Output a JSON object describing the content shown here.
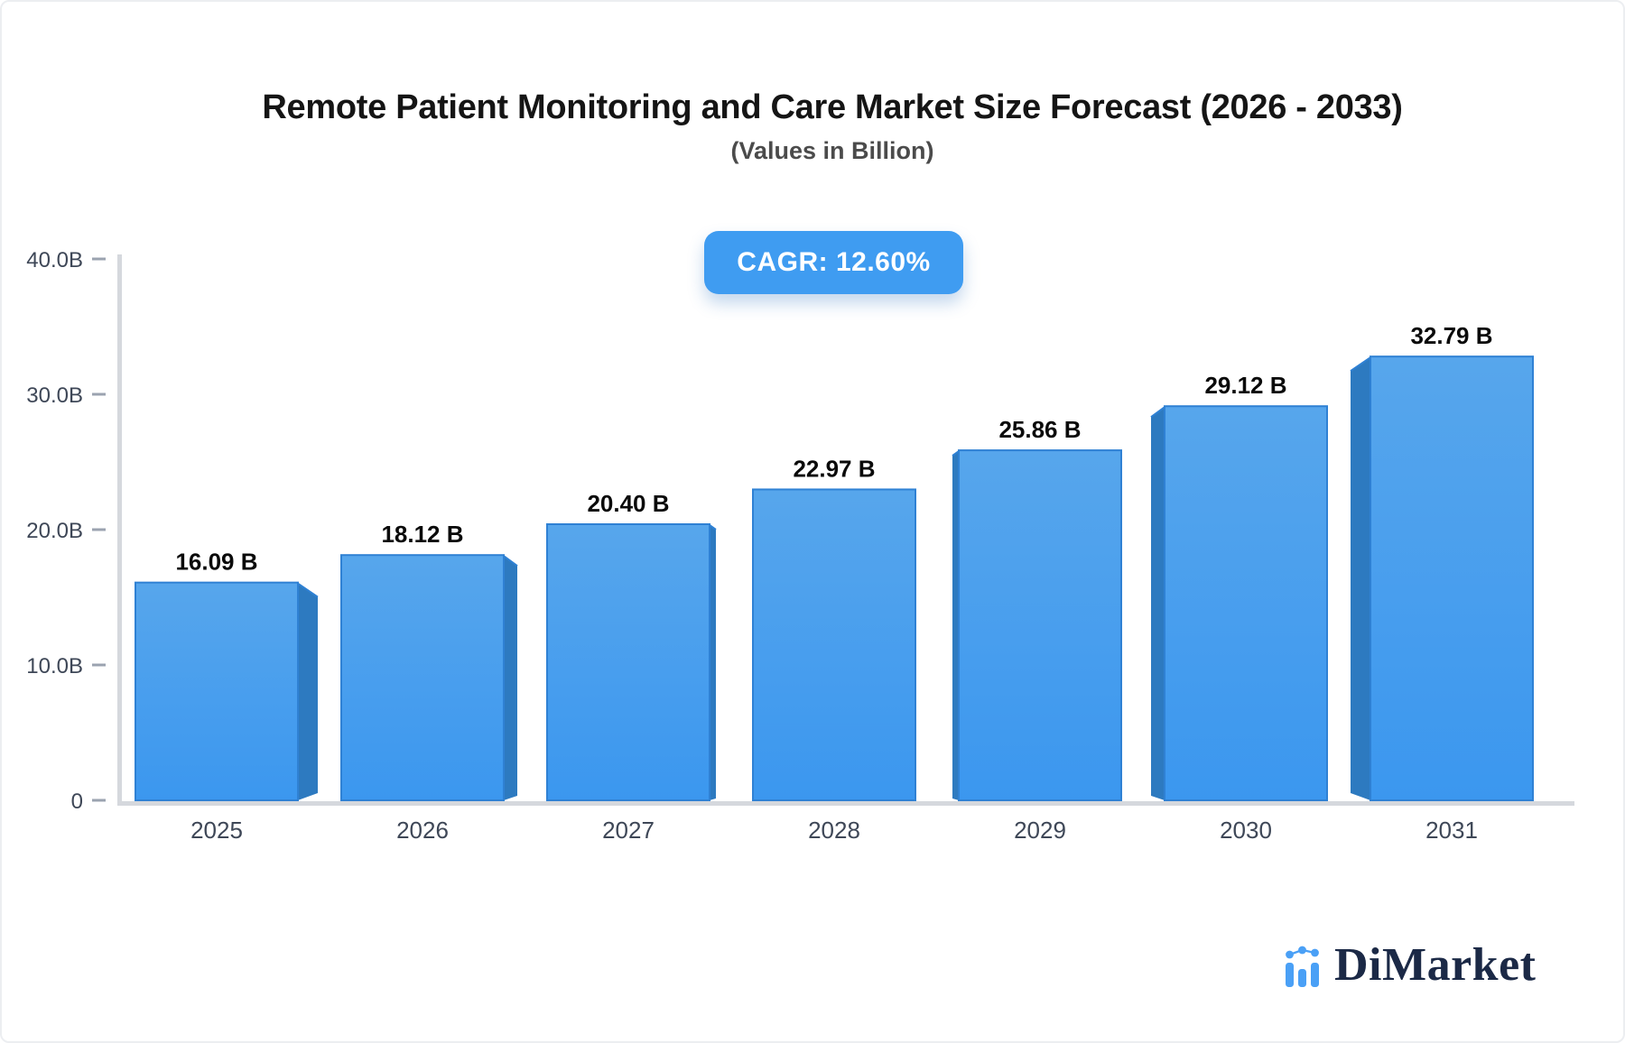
{
  "header": {
    "title": "Remote Patient Monitoring and Care Market Size Forecast (2026 - 2033)",
    "subtitle": "(Values in Billion)"
  },
  "badge": {
    "label": "CAGR: 12.60%"
  },
  "chart_data": {
    "type": "bar",
    "title": "Remote Patient Monitoring and Care Market Size Forecast (2026 - 2033)",
    "subtitle": "(Values in Billion)",
    "categories": [
      "2025",
      "2026",
      "2027",
      "2028",
      "2029",
      "2030",
      "2031"
    ],
    "values": [
      16.09,
      18.12,
      20.4,
      22.97,
      25.86,
      29.12,
      32.79
    ],
    "value_labels": [
      "16.09 B",
      "18.12 B",
      "20.40 B",
      "22.97 B",
      "25.86 B",
      "29.12 B",
      "32.79 B"
    ],
    "ylabel": "",
    "xlabel": "",
    "ylim": [
      0,
      40
    ],
    "yticks": [
      {
        "value": 0,
        "label": "0"
      },
      {
        "value": 10,
        "label": "10.0B"
      },
      {
        "value": 20,
        "label": "20.0B"
      },
      {
        "value": 30,
        "label": "30.0B"
      },
      {
        "value": 40,
        "label": "40.0B"
      }
    ],
    "grid": false,
    "legend": false,
    "bar_style": "3d",
    "colors": {
      "bar_face_top": "#57a6ec",
      "bar_face_bottom": "#3b97ef",
      "bar_face_border": "#2f81d4",
      "bar_side": "#2d7ac0",
      "axis_line": "#d5d8dd",
      "tick_dash": "#9ba3b0",
      "axis_label": "#3e4757",
      "value_label": "#0a0a0a"
    }
  },
  "logo": {
    "text": "DiMarket",
    "icon": "mini-bar-chart-icon",
    "accent": "#4aa0f6",
    "navy": "#1b2946"
  }
}
